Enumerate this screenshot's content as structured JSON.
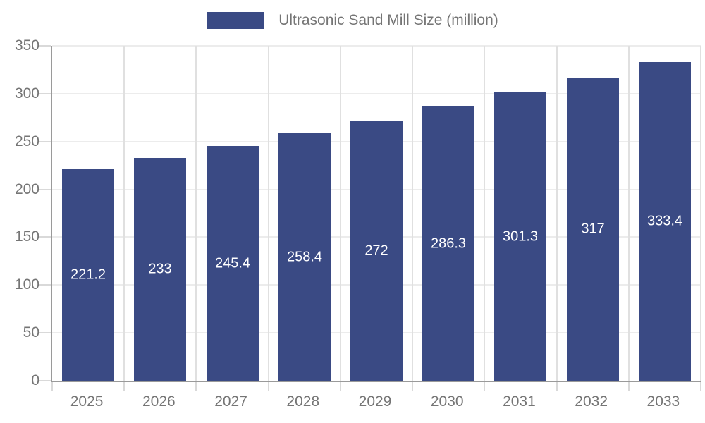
{
  "legend": {
    "label": "Ultrasonic Sand Mill Size (million)"
  },
  "colors": {
    "bar": "#3a4a84",
    "axis_line": "#9a9a9a",
    "grid_horizontal": "#ececec",
    "grid_vertical": "#e0e0e0",
    "tick": "#d9d9d9",
    "axis_text": "#757575",
    "value_label": "#ffffff",
    "background": "#ffffff"
  },
  "chart_data": {
    "type": "bar",
    "title": "Ultrasonic Sand Mill Size (million)",
    "categories": [
      "2025",
      "2026",
      "2027",
      "2028",
      "2029",
      "2030",
      "2031",
      "2032",
      "2033"
    ],
    "values": [
      221.2,
      233,
      245.4,
      258.4,
      272,
      286.3,
      301.3,
      317,
      333.4
    ],
    "xlabel": "",
    "ylabel": "",
    "ylim": [
      0,
      350
    ],
    "ytick_step": 50,
    "grid": true,
    "legend_position": "top",
    "value_labels": "inside-center"
  }
}
